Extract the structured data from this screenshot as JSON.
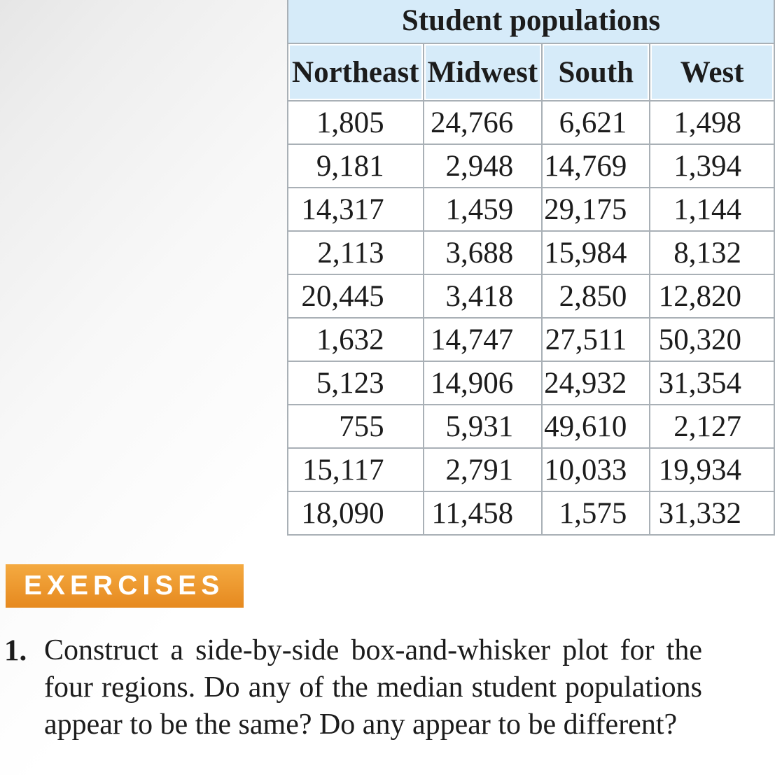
{
  "table": {
    "title": "Student populations",
    "columns": [
      "Northeast",
      "Midwest",
      "South",
      "West"
    ],
    "rows": [
      [
        "1,805",
        "24,766",
        "6,621",
        "1,498"
      ],
      [
        "9,181",
        "2,948",
        "14,769",
        "1,394"
      ],
      [
        "14,317",
        "1,459",
        "29,175",
        "1,144"
      ],
      [
        "2,113",
        "3,688",
        "15,984",
        "8,132"
      ],
      [
        "20,445",
        "3,418",
        "2,850",
        "12,820"
      ],
      [
        "1,632",
        "14,747",
        "27,511",
        "50,320"
      ],
      [
        "5,123",
        "14,906",
        "24,932",
        "31,354"
      ],
      [
        "755",
        "5,931",
        "49,610",
        "2,127"
      ],
      [
        "15,117",
        "2,791",
        "10,033",
        "19,934"
      ],
      [
        "18,090",
        "11,458",
        "1,575",
        "31,332"
      ]
    ],
    "header_bg": "#d6ebf9",
    "border_color": "#a9b0b6"
  },
  "exercises": {
    "banner_label": "EXERCISES",
    "banner_color_top": "#f4aa41",
    "banner_color_bottom": "#e6891f",
    "items": [
      {
        "number": "1.",
        "text": "Construct a side-by-side box-and-whisker plot for the four regions. Do any of the median student populations appear to be the same? Do any appear to be different?"
      }
    ]
  }
}
